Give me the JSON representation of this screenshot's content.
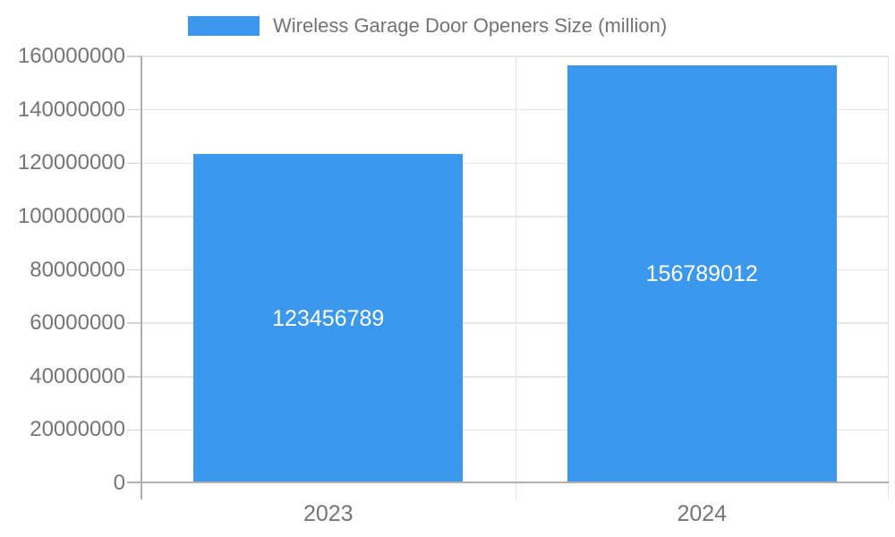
{
  "chart_data": {
    "type": "bar",
    "title": "Wireless Garage Door Openers Size (million)",
    "categories": [
      "2023",
      "2024"
    ],
    "series": [
      {
        "name": "Wireless Garage Door Openers Size (million)",
        "values": [
          123456789,
          156789012
        ]
      }
    ],
    "xlabel": "",
    "ylabel": "",
    "ylim": [
      0,
      160000000
    ],
    "yticks": [
      0,
      20000000,
      40000000,
      60000000,
      80000000,
      100000000,
      120000000,
      140000000,
      160000000
    ],
    "bar_color": "#3b98ec",
    "bar_width_frac": 0.72,
    "grid": true,
    "legend_position": "top",
    "value_label_color": "#ffffff"
  },
  "colors": {
    "background": "#ffffff",
    "grid": "#e6e6e6",
    "axis": "#b0b0b0",
    "tick_text": "#757575",
    "legend_text": "#737373"
  }
}
